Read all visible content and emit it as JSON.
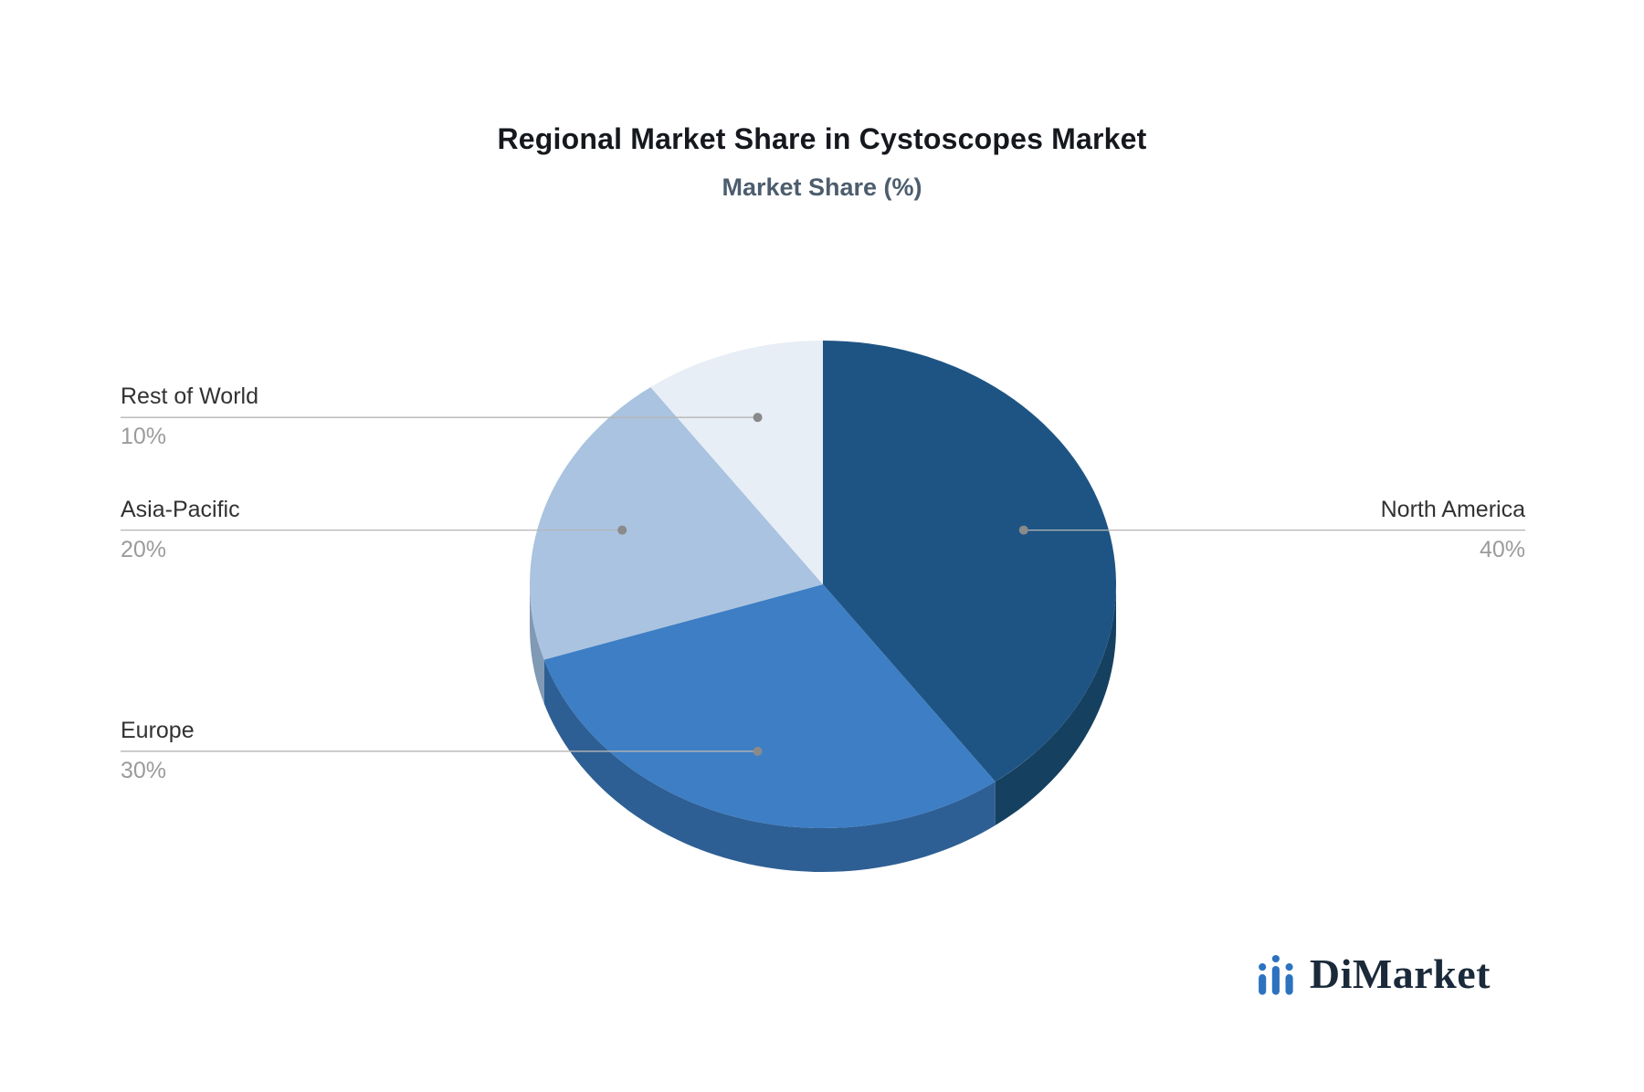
{
  "chart_data": {
    "type": "pie",
    "title": "Regional Market Share in Cystoscopes Market",
    "subtitle": "Market Share (%)",
    "unit": "%",
    "style": "3d",
    "start_angle_deg": -90,
    "direction": "clockwise",
    "legend": "none",
    "slices": [
      {
        "label": "North America",
        "value": 40,
        "display": "40%",
        "color": "#1e5484",
        "side_color": "#16405f"
      },
      {
        "label": "Europe",
        "value": 30,
        "display": "30%",
        "color": "#3d7ec4",
        "side_color": "#2e5f94"
      },
      {
        "label": "Asia-Pacific",
        "value": 20,
        "display": "20%",
        "color": "#a9c3e0",
        "side_color": "#8099b4"
      },
      {
        "label": "Rest of World",
        "value": 10,
        "display": "10%",
        "color": "#e8eef5",
        "side_color": "#c2ccd8"
      }
    ],
    "leader_line_color": "#b5b5b5",
    "leader_dot_color": "#8a8a8a",
    "label_color": "#323232",
    "value_color": "#9b9b9b",
    "title_color": "#15181d",
    "subtitle_color": "#4d5d6e"
  },
  "branding": {
    "logo_text": "DiMarket",
    "logo_icon": "bar-chart-icon",
    "logo_color": "#1b2a3a",
    "logo_icon_color": "#2d72bf"
  }
}
